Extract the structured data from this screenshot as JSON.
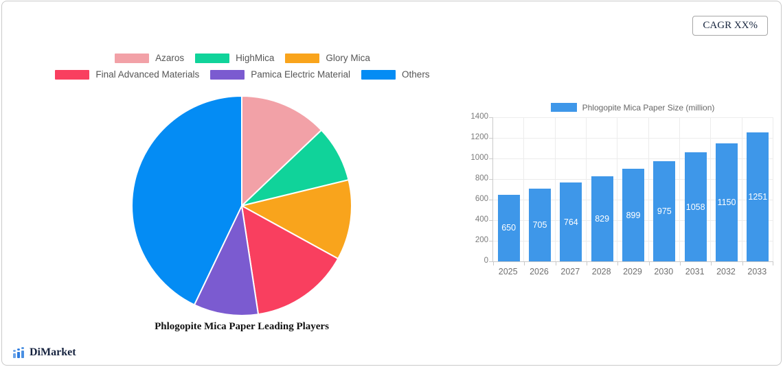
{
  "cagr_button": {
    "label": "CAGR XX%"
  },
  "brand": {
    "name": "DiMarket",
    "icon": "bar-chart-logo-icon"
  },
  "chart_data": [
    {
      "type": "pie",
      "title": "Phlogopite Mica Paper Leading Players",
      "legend_position": "top",
      "legend_rows": [
        [
          0,
          1,
          2
        ],
        [
          3,
          4,
          5
        ]
      ],
      "labels": [
        "Azaros",
        "HighMica",
        "Glory Mica",
        "Final Advanced Materials",
        "Pamica Electric Material",
        "Others"
      ],
      "values_percent": [
        12.9,
        8.3,
        11.8,
        14.6,
        9.5,
        42.9
      ],
      "colors": [
        "#F2A1A7",
        "#10D39A",
        "#F9A41C",
        "#F93F5F",
        "#7B5BD0",
        "#048CF4"
      ],
      "start": "12-oclock",
      "direction": "clockwise"
    },
    {
      "type": "bar",
      "legend": "Phlogopite Mica Paper Size (million)",
      "categories": [
        "2025",
        "2026",
        "2027",
        "2028",
        "2029",
        "2030",
        "2031",
        "2032",
        "2033"
      ],
      "values": [
        650,
        705,
        764,
        829,
        899,
        975,
        1058,
        1150,
        1251
      ],
      "bar_color": "#3E97E9",
      "value_label_color": "#ffffff",
      "value_label_position": "inside-center",
      "ylim": [
        0,
        1400
      ],
      "ytick_step": 200,
      "yticks": [
        0,
        200,
        400,
        600,
        800,
        1000,
        1200,
        1400
      ],
      "grid": true,
      "legend_position": "top"
    }
  ]
}
